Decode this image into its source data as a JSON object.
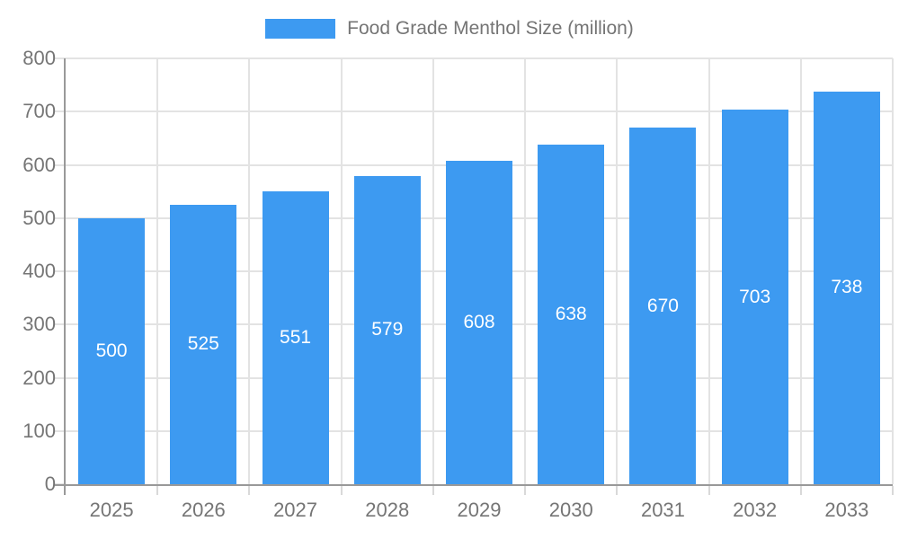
{
  "legend": {
    "label": "Food Grade Menthol Size (million)",
    "swatch_color": "#3D9AF1"
  },
  "chart_data": {
    "type": "bar",
    "title": "Food Grade Menthol Size (million)",
    "categories": [
      "2025",
      "2026",
      "2027",
      "2028",
      "2029",
      "2030",
      "2031",
      "2032",
      "2033"
    ],
    "series": [
      {
        "name": "Food Grade Menthol Size (million)",
        "values": [
          500,
          525,
          551,
          579,
          608,
          638,
          670,
          703,
          738
        ]
      }
    ],
    "xlabel": "",
    "ylabel": "",
    "ylim": [
      0,
      800
    ],
    "y_ticks": [
      0,
      100,
      200,
      300,
      400,
      500,
      600,
      700,
      800
    ],
    "grid": true,
    "legend_position": "top",
    "bar_value_labels": true,
    "colors": {
      "bar": "#3D9AF1",
      "bar_label": "#FFFFFF",
      "axis_line": "#999999",
      "gridline": "#E3E3E3",
      "tick_text": "#757575",
      "background": "#FFFFFF"
    }
  }
}
